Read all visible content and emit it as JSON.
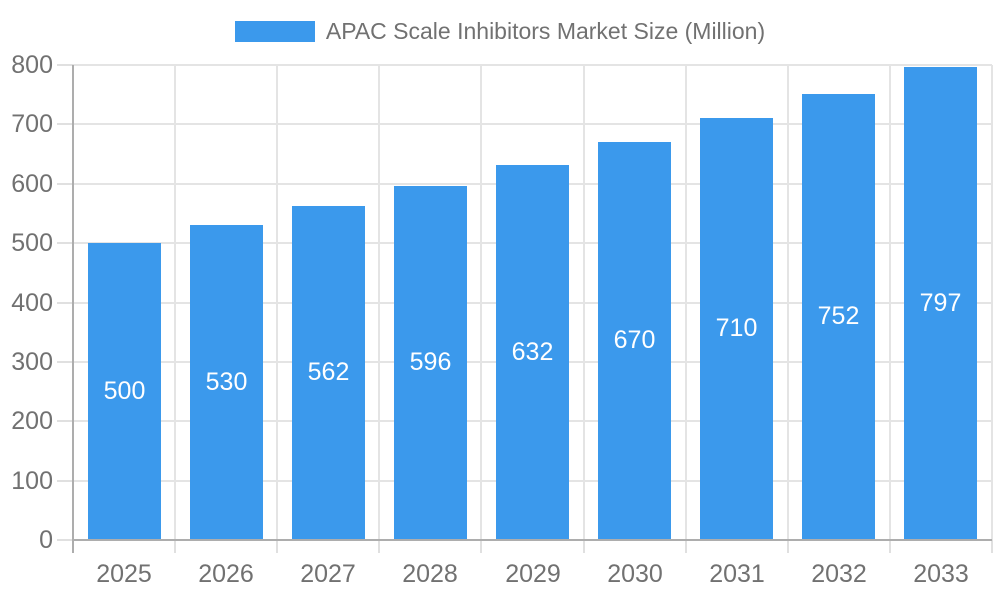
{
  "legend": {
    "label": "APAC Scale Inhibitors Market Size (Million)"
  },
  "chart_data": {
    "type": "bar",
    "title": "APAC Scale Inhibitors Market Size (Million)",
    "categories": [
      "2025",
      "2026",
      "2027",
      "2028",
      "2029",
      "2030",
      "2031",
      "2032",
      "2033"
    ],
    "values": [
      500,
      530,
      562,
      596,
      632,
      670,
      710,
      752,
      797
    ],
    "xlabel": "",
    "ylabel": "",
    "ylim": [
      0,
      800
    ],
    "ytick_interval": 100,
    "yticks": [
      0,
      100,
      200,
      300,
      400,
      500,
      600,
      700,
      800
    ],
    "grid": true,
    "legend_position": "top",
    "bar_labels_inside": true
  },
  "colors": {
    "bar": "#3b99ec",
    "grid_line": "#e4e4e4",
    "tick_line": "#e0e0e0",
    "axis_line": "#adadad",
    "text": "#717171",
    "bar_label": "#ffffff",
    "background": "#ffffff"
  }
}
